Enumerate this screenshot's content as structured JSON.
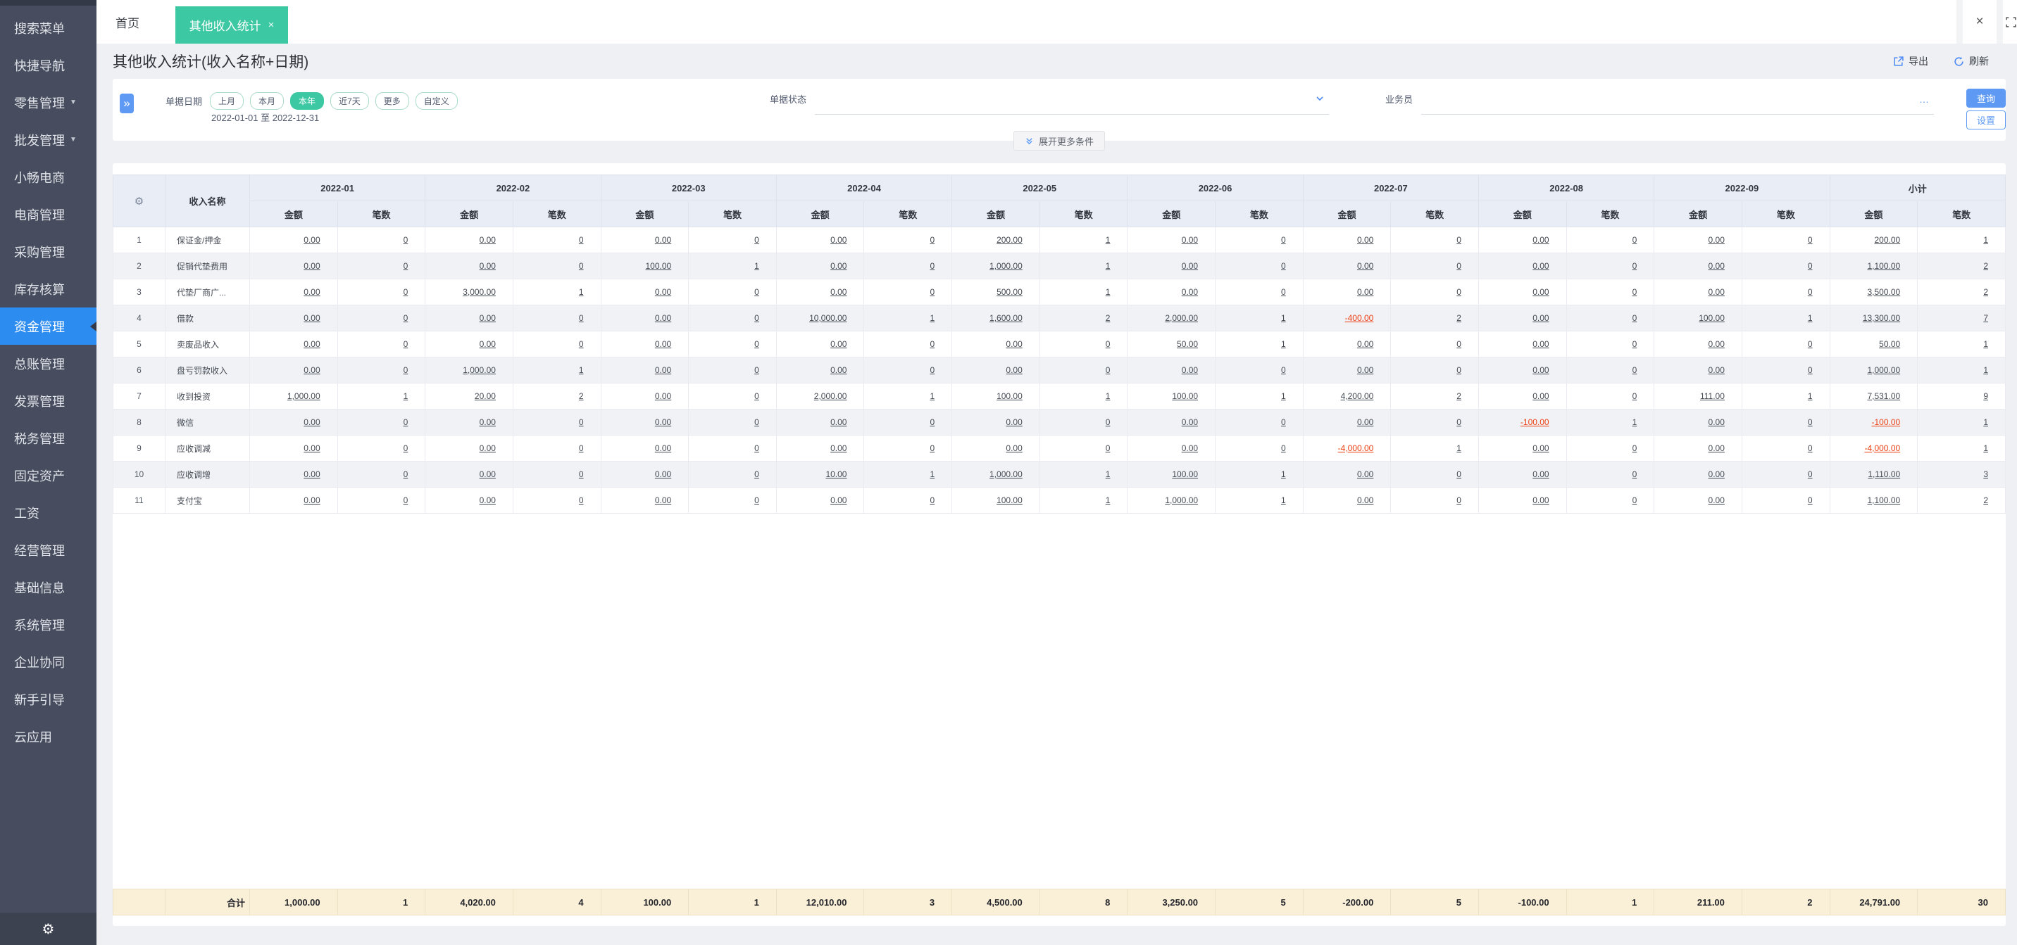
{
  "colors": {
    "sidebar_bg": "#474d5e",
    "active_blue": "#2d8cf0",
    "tab_green": "#3cc8a2",
    "button_blue": "#5e9af3",
    "negative_red": "#ed4014",
    "total_row_bg": "#faf0d8",
    "header_bg": "#e9edf5"
  },
  "icons": {
    "gear": "⚙",
    "caret_down": "▼",
    "chevron_double_right": "»",
    "close": "×",
    "ellipsis": "…"
  },
  "sidebar": {
    "items": [
      {
        "label": "搜索菜单"
      },
      {
        "label": "快捷导航"
      },
      {
        "label": "零售管理",
        "caret": true
      },
      {
        "label": "批发管理",
        "caret": true
      },
      {
        "label": "小畅电商"
      },
      {
        "label": "电商管理"
      },
      {
        "label": "采购管理"
      },
      {
        "label": "库存核算"
      },
      {
        "label": "资金管理",
        "active": true
      },
      {
        "label": "总账管理"
      },
      {
        "label": "发票管理"
      },
      {
        "label": "税务管理"
      },
      {
        "label": "固定资产"
      },
      {
        "label": "工资"
      },
      {
        "label": "经营管理"
      },
      {
        "label": "基础信息"
      },
      {
        "label": "系统管理"
      },
      {
        "label": "企业协同"
      },
      {
        "label": "新手引导"
      },
      {
        "label": "云应用"
      }
    ]
  },
  "tabs": {
    "home": "首页",
    "active_label": "其他收入统计",
    "active_close": "×"
  },
  "window_controls": {
    "close": "×"
  },
  "header": {
    "title": "其他收入统计(收入名称+日期)",
    "export_label": "导出",
    "refresh_label": "刷新"
  },
  "filters": {
    "collapse_glyph": "»",
    "date_label": "单据日期",
    "date_pills": [
      "上月",
      "本月",
      "本年",
      "近7天",
      "更多",
      "自定义"
    ],
    "date_selected_index": 2,
    "date_range": "2022-01-01 至 2022-12-31",
    "status_label": "单据状态",
    "salesman_label": "业务员",
    "ellipsis": "…",
    "query_button": "查询",
    "settings_button": "设置",
    "expand_more": "展开更多条件"
  },
  "table": {
    "index_header": "",
    "name_header": "收入名称",
    "amount_header": "金额",
    "count_header": "笔数",
    "months": [
      "2022-01",
      "2022-02",
      "2022-03",
      "2022-04",
      "2022-05",
      "2022-06",
      "2022-07",
      "2022-08",
      "2022-09",
      "小计"
    ],
    "rows": [
      {
        "index": 1,
        "name": "保证金/押金",
        "cells": [
          [
            "0.00",
            "0"
          ],
          [
            "0.00",
            "0"
          ],
          [
            "0.00",
            "0"
          ],
          [
            "0.00",
            "0"
          ],
          [
            "200.00",
            "1"
          ],
          [
            "0.00",
            "0"
          ],
          [
            "0.00",
            "0"
          ],
          [
            "0.00",
            "0"
          ],
          [
            "0.00",
            "0"
          ],
          [
            "200.00",
            "1"
          ]
        ]
      },
      {
        "index": 2,
        "name": "促销代垫费用",
        "cells": [
          [
            "0.00",
            "0"
          ],
          [
            "0.00",
            "0"
          ],
          [
            "100.00",
            "1"
          ],
          [
            "0.00",
            "0"
          ],
          [
            "1,000.00",
            "1"
          ],
          [
            "0.00",
            "0"
          ],
          [
            "0.00",
            "0"
          ],
          [
            "0.00",
            "0"
          ],
          [
            "0.00",
            "0"
          ],
          [
            "1,100.00",
            "2"
          ]
        ]
      },
      {
        "index": 3,
        "name": "代垫厂商广...",
        "cells": [
          [
            "0.00",
            "0"
          ],
          [
            "3,000.00",
            "1"
          ],
          [
            "0.00",
            "0"
          ],
          [
            "0.00",
            "0"
          ],
          [
            "500.00",
            "1"
          ],
          [
            "0.00",
            "0"
          ],
          [
            "0.00",
            "0"
          ],
          [
            "0.00",
            "0"
          ],
          [
            "0.00",
            "0"
          ],
          [
            "3,500.00",
            "2"
          ]
        ]
      },
      {
        "index": 4,
        "name": "借款",
        "cells": [
          [
            "0.00",
            "0"
          ],
          [
            "0.00",
            "0"
          ],
          [
            "0.00",
            "0"
          ],
          [
            "10,000.00",
            "1"
          ],
          [
            "1,600.00",
            "2"
          ],
          [
            "2,000.00",
            "1"
          ],
          [
            "-400.00",
            "2"
          ],
          [
            "0.00",
            "0"
          ],
          [
            "100.00",
            "1"
          ],
          [
            "13,300.00",
            "7"
          ]
        ]
      },
      {
        "index": 5,
        "name": "卖废品收入",
        "cells": [
          [
            "0.00",
            "0"
          ],
          [
            "0.00",
            "0"
          ],
          [
            "0.00",
            "0"
          ],
          [
            "0.00",
            "0"
          ],
          [
            "0.00",
            "0"
          ],
          [
            "50.00",
            "1"
          ],
          [
            "0.00",
            "0"
          ],
          [
            "0.00",
            "0"
          ],
          [
            "0.00",
            "0"
          ],
          [
            "50.00",
            "1"
          ]
        ]
      },
      {
        "index": 6,
        "name": "盘亏罚款收入",
        "cells": [
          [
            "0.00",
            "0"
          ],
          [
            "1,000.00",
            "1"
          ],
          [
            "0.00",
            "0"
          ],
          [
            "0.00",
            "0"
          ],
          [
            "0.00",
            "0"
          ],
          [
            "0.00",
            "0"
          ],
          [
            "0.00",
            "0"
          ],
          [
            "0.00",
            "0"
          ],
          [
            "0.00",
            "0"
          ],
          [
            "1,000.00",
            "1"
          ]
        ]
      },
      {
        "index": 7,
        "name": "收到投资",
        "cells": [
          [
            "1,000.00",
            "1"
          ],
          [
            "20.00",
            "2"
          ],
          [
            "0.00",
            "0"
          ],
          [
            "2,000.00",
            "1"
          ],
          [
            "100.00",
            "1"
          ],
          [
            "100.00",
            "1"
          ],
          [
            "4,200.00",
            "2"
          ],
          [
            "0.00",
            "0"
          ],
          [
            "111.00",
            "1"
          ],
          [
            "7,531.00",
            "9"
          ]
        ]
      },
      {
        "index": 8,
        "name": "微信",
        "cells": [
          [
            "0.00",
            "0"
          ],
          [
            "0.00",
            "0"
          ],
          [
            "0.00",
            "0"
          ],
          [
            "0.00",
            "0"
          ],
          [
            "0.00",
            "0"
          ],
          [
            "0.00",
            "0"
          ],
          [
            "0.00",
            "0"
          ],
          [
            "-100.00",
            "1"
          ],
          [
            "0.00",
            "0"
          ],
          [
            "-100.00",
            "1"
          ]
        ]
      },
      {
        "index": 9,
        "name": "应收调减",
        "cells": [
          [
            "0.00",
            "0"
          ],
          [
            "0.00",
            "0"
          ],
          [
            "0.00",
            "0"
          ],
          [
            "0.00",
            "0"
          ],
          [
            "0.00",
            "0"
          ],
          [
            "0.00",
            "0"
          ],
          [
            "-4,000.00",
            "1"
          ],
          [
            "0.00",
            "0"
          ],
          [
            "0.00",
            "0"
          ],
          [
            "-4,000.00",
            "1"
          ]
        ]
      },
      {
        "index": 10,
        "name": "应收调增",
        "cells": [
          [
            "0.00",
            "0"
          ],
          [
            "0.00",
            "0"
          ],
          [
            "0.00",
            "0"
          ],
          [
            "10.00",
            "1"
          ],
          [
            "1,000.00",
            "1"
          ],
          [
            "100.00",
            "1"
          ],
          [
            "0.00",
            "0"
          ],
          [
            "0.00",
            "0"
          ],
          [
            "0.00",
            "0"
          ],
          [
            "1,110.00",
            "3"
          ]
        ]
      },
      {
        "index": 11,
        "name": "支付宝",
        "cells": [
          [
            "0.00",
            "0"
          ],
          [
            "0.00",
            "0"
          ],
          [
            "0.00",
            "0"
          ],
          [
            "0.00",
            "0"
          ],
          [
            "100.00",
            "1"
          ],
          [
            "1,000.00",
            "1"
          ],
          [
            "0.00",
            "0"
          ],
          [
            "0.00",
            "0"
          ],
          [
            "0.00",
            "0"
          ],
          [
            "1,100.00",
            "2"
          ]
        ]
      }
    ],
    "total": {
      "label": "合计",
      "cells": [
        [
          "1,000.00",
          "1"
        ],
        [
          "4,020.00",
          "4"
        ],
        [
          "100.00",
          "1"
        ],
        [
          "12,010.00",
          "3"
        ],
        [
          "4,500.00",
          "8"
        ],
        [
          "3,250.00",
          "5"
        ],
        [
          "-200.00",
          "5"
        ],
        [
          "-100.00",
          "1"
        ],
        [
          "211.00",
          "2"
        ],
        [
          "24,791.00",
          "30"
        ]
      ]
    }
  }
}
